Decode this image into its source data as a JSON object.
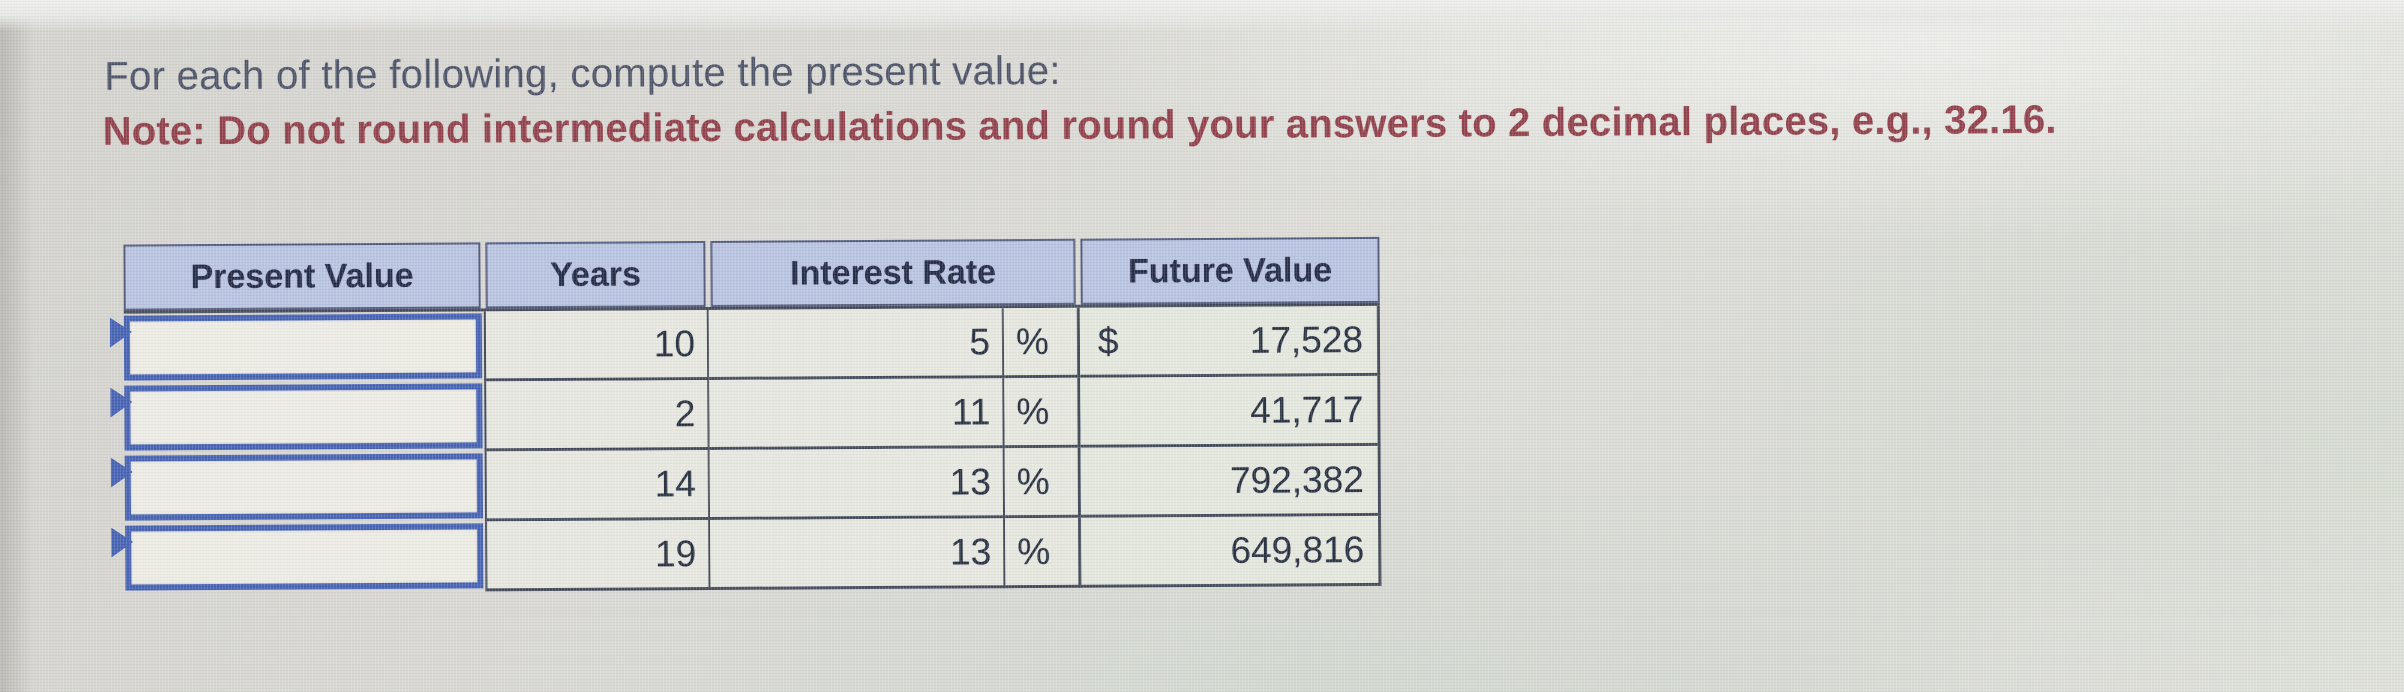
{
  "question": {
    "title": "For each of the following, compute the present value:",
    "note": "Note: Do not round intermediate calculations and round your answers to 2 decimal places, e.g., 32.16."
  },
  "table": {
    "headers": [
      "Present Value",
      "Years",
      "Interest Rate",
      "Future Value"
    ],
    "rows": [
      {
        "present_value": "",
        "years": "10",
        "interest_rate": "5",
        "percent": "%",
        "currency": "$",
        "future_value": "17,528"
      },
      {
        "present_value": "",
        "years": "2",
        "interest_rate": "11",
        "percent": "%",
        "currency": "",
        "future_value": "41,717"
      },
      {
        "present_value": "",
        "years": "14",
        "interest_rate": "13",
        "percent": "%",
        "currency": "",
        "future_value": "792,382"
      },
      {
        "present_value": "",
        "years": "19",
        "interest_rate": "13",
        "percent": "%",
        "currency": "",
        "future_value": "649,816"
      }
    ]
  },
  "colors": {
    "title_text": "#474d63",
    "note_text": "#8d3944",
    "header_bg": "#b6c1e0",
    "header_text": "#1b2340",
    "input_border_blue": "#3f5cb0",
    "grid_line": "#3c4353",
    "page_bg": "#d7d6d1"
  }
}
